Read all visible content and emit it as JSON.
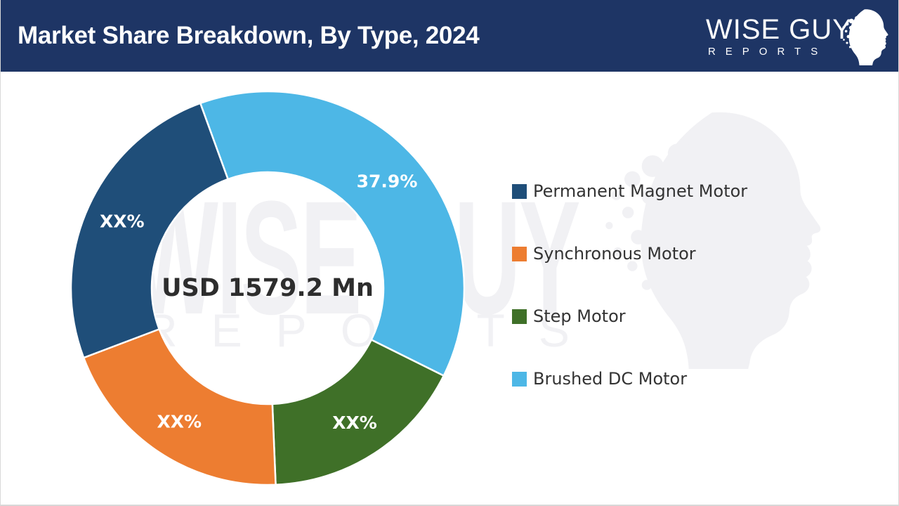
{
  "header": {
    "title": "Market Share Breakdown, By Type, 2024",
    "logo": {
      "line1": "WISE GUY",
      "line2": "REPORTS"
    }
  },
  "watermark": {
    "line1": "WISE GUY",
    "line2": "REPORTS"
  },
  "chart_data": {
    "type": "pie",
    "subtype": "donut",
    "title": "Market Share Breakdown, By Type, 2024",
    "center_label": "USD 1579.2 Mn",
    "start_angle_deg": 110,
    "direction": "clockwise",
    "legend_position": "right",
    "segments": [
      {
        "name": "Permanent Magnet Motor",
        "value_pct": 25.2,
        "display_label": "XX%",
        "color": "#1f4e79"
      },
      {
        "name": "Synchronous Motor",
        "value_pct": 19.9,
        "display_label": "XX%",
        "color": "#ed7d31"
      },
      {
        "name": "Step Motor",
        "value_pct": 17.0,
        "display_label": "XX%",
        "color": "#3f7028"
      },
      {
        "name": "Brushed DC Motor",
        "value_pct": 37.9,
        "display_label": "37.9%",
        "color": "#4db7e6"
      }
    ]
  },
  "colors": {
    "header_bg": "#1e3565",
    "slice_label": "#ffffff",
    "center_text": "#2d2d2d",
    "legend_text": "#333333",
    "watermark": "#f1f1f4",
    "border": "#d8d8d8"
  }
}
